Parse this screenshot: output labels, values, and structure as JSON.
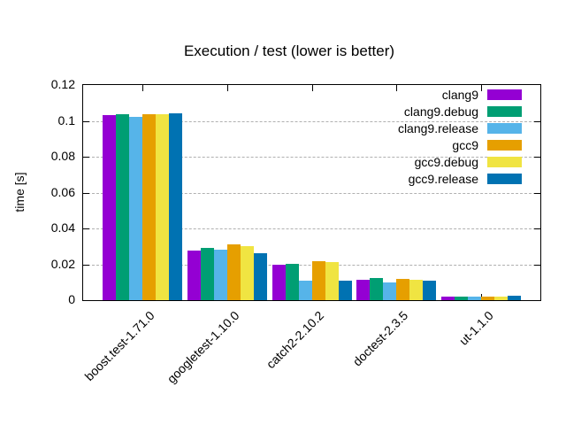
{
  "chart_data": {
    "type": "bar",
    "title": "Execution / test (lower is better)",
    "ylabel": "time [s]",
    "xlabel": "",
    "categories": [
      "boost.test-1.71.0",
      "googletest-1.10.0",
      "catch2-2.10.2",
      "doctest-2.3.5",
      "ut-1.1.0"
    ],
    "series": [
      {
        "name": "clang9",
        "color": "#9400d3",
        "values": [
          0.103,
          0.0275,
          0.0198,
          0.0113,
          0.0022
        ]
      },
      {
        "name": "clang9.debug",
        "color": "#009e73",
        "values": [
          0.1038,
          0.029,
          0.02,
          0.0123,
          0.0022
        ]
      },
      {
        "name": "clang9.release",
        "color": "#56b4e9",
        "values": [
          0.102,
          0.028,
          0.011,
          0.01,
          0.0022
        ]
      },
      {
        "name": "gcc9",
        "color": "#e69f00",
        "values": [
          0.1037,
          0.031,
          0.0218,
          0.012,
          0.0022
        ]
      },
      {
        "name": "gcc9.debug",
        "color": "#f0e442",
        "values": [
          0.1037,
          0.03,
          0.0213,
          0.0116,
          0.0022
        ]
      },
      {
        "name": "gcc9.release",
        "color": "#0072b2",
        "values": [
          0.1042,
          0.026,
          0.011,
          0.011,
          0.0024
        ]
      }
    ],
    "ylim": [
      0,
      0.12
    ],
    "yticks": [
      {
        "v": 0,
        "label": "0"
      },
      {
        "v": 0.02,
        "label": "0.02"
      },
      {
        "v": 0.04,
        "label": "0.04"
      },
      {
        "v": 0.06,
        "label": "0.06"
      },
      {
        "v": 0.08,
        "label": "0.08"
      },
      {
        "v": 0.1,
        "label": "0.1"
      },
      {
        "v": 0.12,
        "label": "0.12"
      }
    ],
    "grid": true,
    "legend_position": "top-right-inside"
  }
}
